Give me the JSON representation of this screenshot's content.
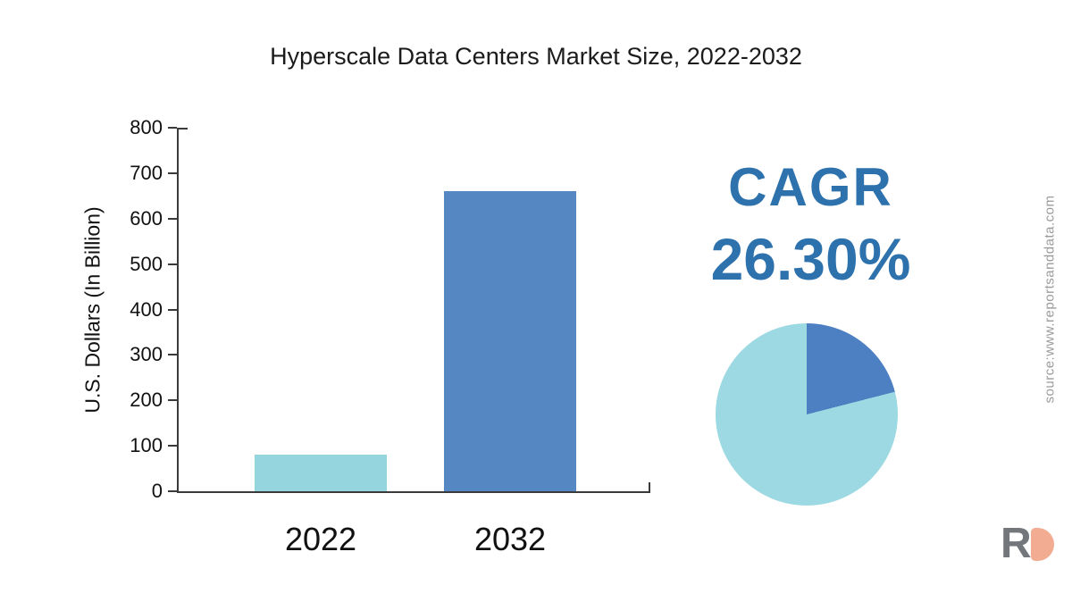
{
  "page": {
    "title": "Hyperscale Data Centers Market Size, 2022-2032"
  },
  "cagr": {
    "label": "CAGR",
    "value": "26.30%"
  },
  "source_note": "source:www.reportsanddata.com",
  "logo": {
    "letter": "R"
  },
  "colors": {
    "bar_2022": "#95d5de",
    "bar_2032": "#5588c3",
    "pie_dark": "#4d80c3",
    "pie_light": "#9cd9e2",
    "cagr_text": "#2e72ad",
    "axis_line": "#3a3a3a",
    "text_dark": "#1b1b1b",
    "source_text": "#9b9b9b",
    "logo_gray": "#73777c",
    "logo_peach": "#f1ac92"
  },
  "chart_data": [
    {
      "type": "bar",
      "title": "Hyperscale Data Centers Market Size, 2022-2032",
      "categories": [
        "2022",
        "2032"
      ],
      "values": [
        80,
        660
      ],
      "xlabel": "",
      "ylabel": "U.S. Dollars (In Billion)",
      "ylim": [
        0,
        800
      ],
      "yticks": [
        0,
        100,
        200,
        300,
        400,
        500,
        600,
        700,
        800
      ],
      "grid": false,
      "legend": "none",
      "bar_colors": [
        "#95d5de",
        "#5588c3"
      ]
    },
    {
      "type": "pie",
      "label": "CAGR 26.30%",
      "values": [
        21,
        79
      ],
      "slice_colors": [
        "#4d80c3",
        "#9cd9e2"
      ],
      "start_angle_deg": 0,
      "direction": "clockwise",
      "legend": "none"
    }
  ]
}
